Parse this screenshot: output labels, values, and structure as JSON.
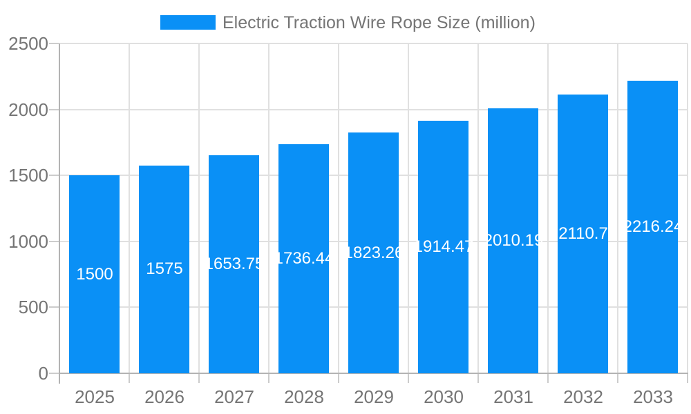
{
  "legend": {
    "label": "Electric Traction Wire Rope Size (million)"
  },
  "chart_data": {
    "type": "bar",
    "title": "Electric Traction Wire Rope Size (million)",
    "categories": [
      "2025",
      "2026",
      "2027",
      "2028",
      "2029",
      "2030",
      "2031",
      "2032",
      "2033"
    ],
    "series": [
      {
        "name": "Electric Traction Wire Rope Size (million)",
        "values": [
          1500,
          1575,
          1653.75,
          1736.44,
          1823.26,
          1914.47,
          2010.19,
          2110.7,
          2216.24
        ],
        "value_labels": [
          "1500",
          "1575",
          "1653.75",
          "1736.44",
          "1823.26",
          "1914.47",
          "2010.19",
          "2110.7",
          "2216.24"
        ]
      }
    ],
    "xlabel": "",
    "ylabel": "",
    "ylim": [
      0,
      2500
    ],
    "y_ticks": [
      0,
      500,
      1000,
      1500,
      2000,
      2500
    ],
    "grid": true,
    "legend_position": "top",
    "colors": {
      "bar": "#0a90f6",
      "axis_text": "#757575",
      "gridline": "#e0e0e0",
      "axis_line": "#b3b3b3",
      "tick": "#cccccc",
      "value_label": "#ffffff",
      "background": "#ffffff"
    }
  }
}
